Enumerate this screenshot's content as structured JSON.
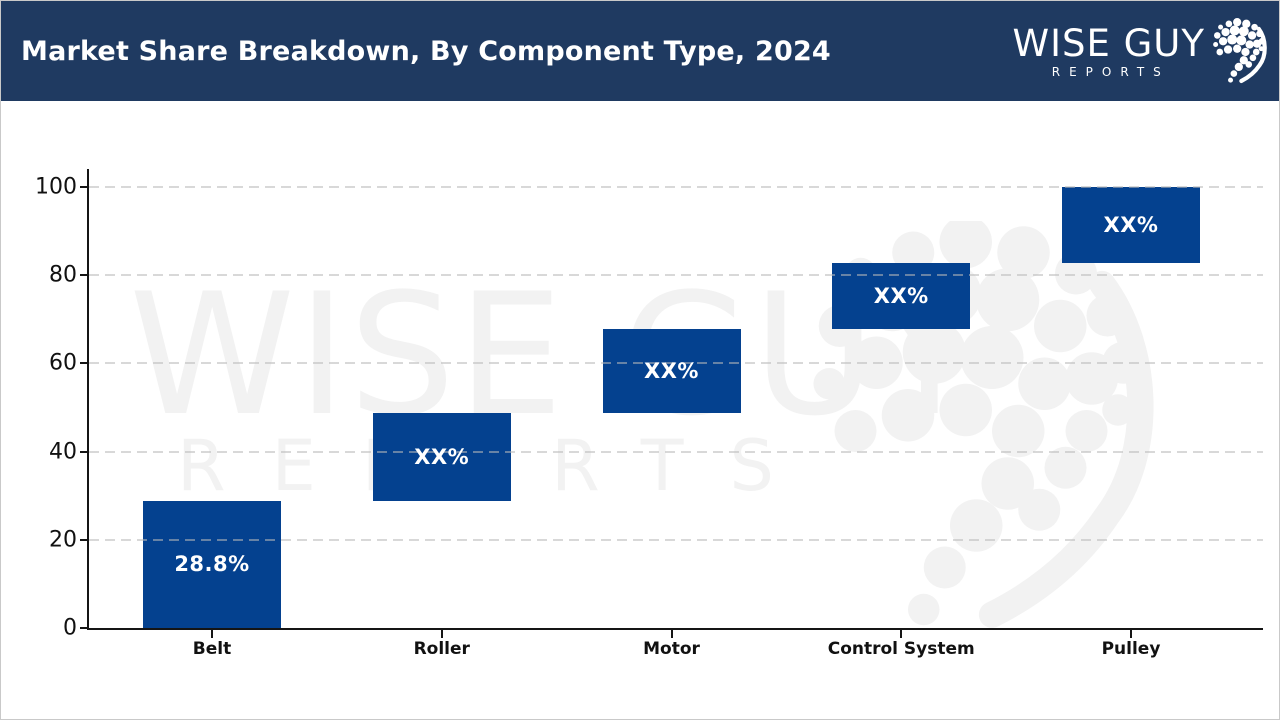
{
  "header": {
    "title": "Market Share Breakdown, By Component Type, 2024",
    "logo": {
      "name": "WISE GUY",
      "sub": "REPORTS"
    }
  },
  "watermark": {
    "line1": "WISE GUY",
    "line2": "REPORTS"
  },
  "chart_data": {
    "type": "bar",
    "subtype": "waterfall",
    "title": "Market Share Breakdown, By Component Type, 2024",
    "categories": [
      "Belt",
      "Roller",
      "Motor",
      "Control System",
      "Pulley"
    ],
    "segments": [
      {
        "category": "Belt",
        "start": 0,
        "end": 28.8,
        "label": "28.8%"
      },
      {
        "category": "Roller",
        "start": 28.8,
        "end": 48.8,
        "label": "XX%"
      },
      {
        "category": "Motor",
        "start": 48.8,
        "end": 67.8,
        "label": "XX%"
      },
      {
        "category": "Control System",
        "start": 67.8,
        "end": 82.8,
        "label": "XX%"
      },
      {
        "category": "Pulley",
        "start": 82.8,
        "end": 100,
        "label": "XX%"
      }
    ],
    "y_ticks": [
      0,
      20,
      40,
      60,
      80,
      100
    ],
    "ylim": [
      0,
      104
    ],
    "xlabel": "",
    "ylabel": "",
    "grid": "horizontal-dashed",
    "legend": "none",
    "bar_color": "#04418f",
    "bar_label_color": "#ffffff",
    "grid_color": "#dcdcdc",
    "axis_color": "#151515",
    "header_bg_color": "#1f3a61",
    "background_color": "#ffffff"
  }
}
